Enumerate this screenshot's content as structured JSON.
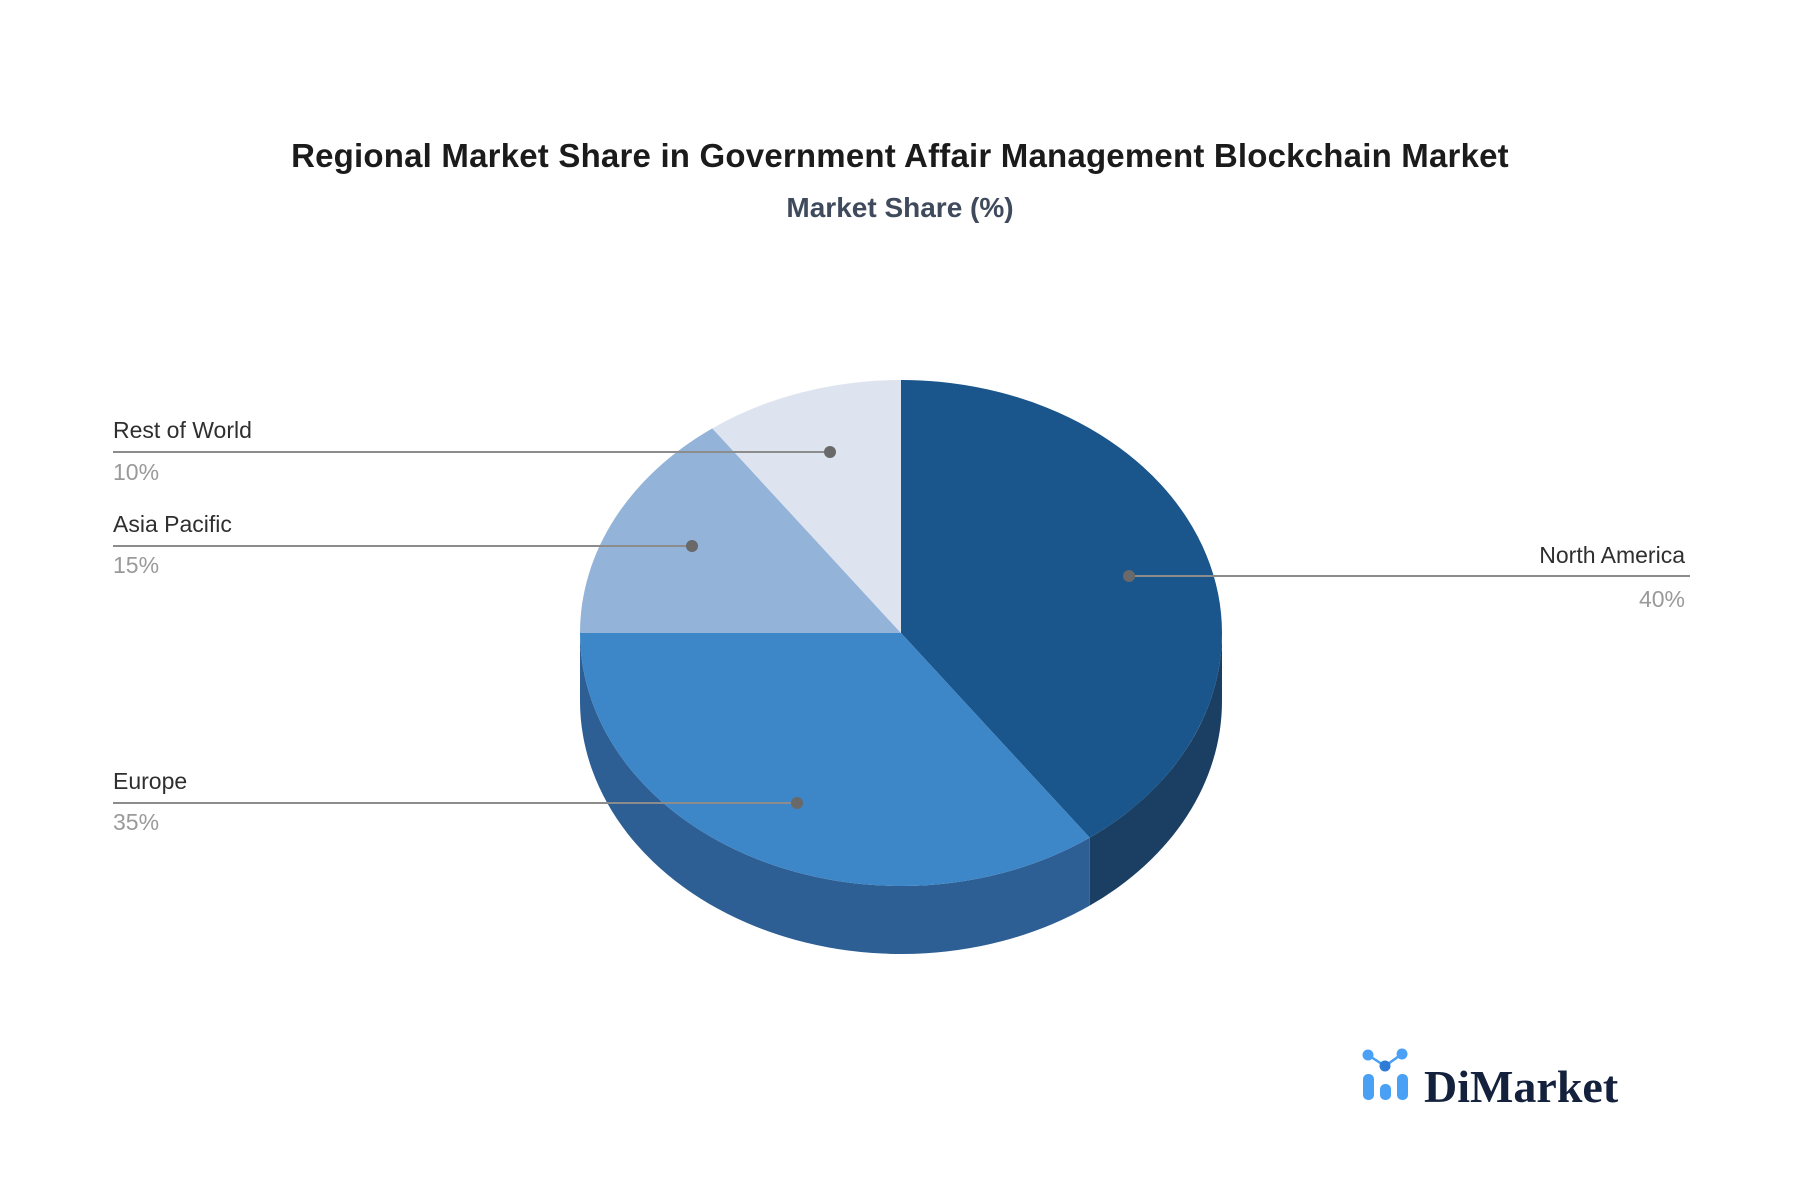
{
  "header": {
    "title": "Regional Market Share in Government Affair Management Blockchain Market",
    "subtitle": "Market Share (%)"
  },
  "chart_data": {
    "type": "pie",
    "style": "3d",
    "title": "Regional Market Share in Government Affair Management Blockchain Market",
    "subtitle": "Market Share (%)",
    "unit": "%",
    "start_angle_deg": 0,
    "direction": "clockwise",
    "legend_position": "callout-labels",
    "slices": [
      {
        "label": "North America",
        "value": 40,
        "color": "#1A568C",
        "side_color": "#1A3F63"
      },
      {
        "label": "Europe",
        "value": 35,
        "color": "#3D87C9",
        "side_color": "#2D5F94"
      },
      {
        "label": "Asia Pacific",
        "value": 15,
        "color": "#93B3D9",
        "side_color": "#6E86A3"
      },
      {
        "label": "Rest of World",
        "value": 10,
        "color": "#DEE4EF",
        "side_color": "#A6ABB3"
      }
    ]
  },
  "callouts": [
    {
      "name": "North America",
      "pct": "40%"
    },
    {
      "name": "Europe",
      "pct": "35%"
    },
    {
      "name": "Asia Pacific",
      "pct": "15%"
    },
    {
      "name": "Rest of World",
      "pct": "10%"
    }
  ],
  "branding": {
    "name": "DiMarket",
    "icon": "bar-line-chart-icon"
  },
  "colors": {
    "background": "#FFFFFF",
    "leader_line": "#8C8C8C",
    "leader_dot": "#696969",
    "label_text": "#2F2F2F",
    "pct_text": "#9A9A9A",
    "title_text": "#1B1B1B",
    "subtitle_text": "#3F4B5C",
    "brand_blue": "#4AA0F5",
    "brand_blue_dark": "#2E7CD6",
    "brand_navy": "#14213D"
  }
}
